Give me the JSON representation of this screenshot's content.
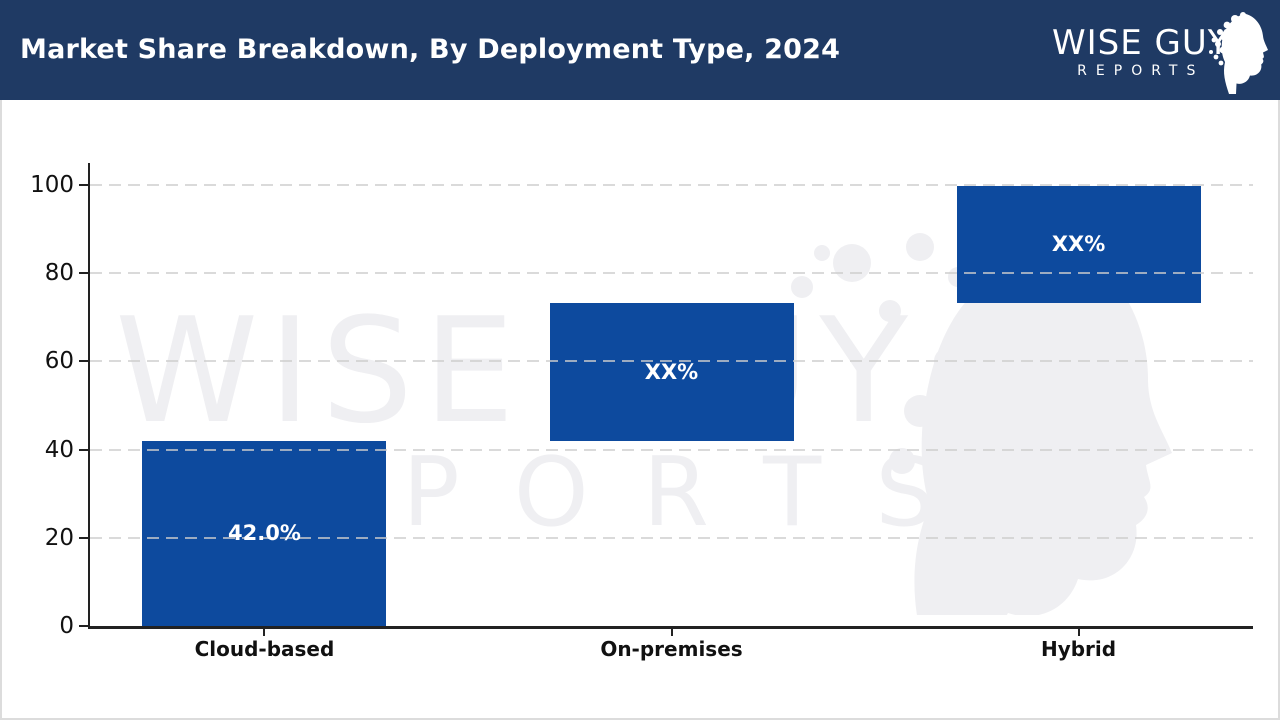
{
  "header": {
    "title": "Market Share Breakdown, By Deployment Type, 2024",
    "logo": {
      "line1": "WISE GUY",
      "line2": "REPORTS"
    }
  },
  "watermark": {
    "line1": "WISE GUY",
    "line2": "R E P O R T S"
  },
  "colors": {
    "header_bg": "#1f3a64",
    "bar_blue": "#0d4a9e",
    "axis": "#222222",
    "grid_dash": "#d2d2d2",
    "watermark": "#efeff2",
    "bar_label_text": "#ffffff",
    "tick_text": "#111111"
  },
  "chart_data": {
    "type": "bar",
    "variant": "waterfall-floating-bars",
    "title": "Market Share Breakdown, By Deployment Type, 2024",
    "categories": [
      "Cloud-based",
      "On-premises",
      "Hybrid"
    ],
    "segments": [
      {
        "category": "Cloud-based",
        "label": "42.0%",
        "start": 0,
        "end": 42
      },
      {
        "category": "On-premises",
        "label": "XX%",
        "start": 42,
        "end": 73.3
      },
      {
        "category": "Hybrid",
        "label": "XX%",
        "start": 73.3,
        "end": 99.8
      }
    ],
    "yticks": [
      0,
      20,
      40,
      60,
      80,
      100
    ],
    "ylim": [
      0,
      105
    ],
    "xlabel": "",
    "ylabel": "",
    "grid": "horizontal dashed, drawn over bars",
    "legend": "none"
  }
}
